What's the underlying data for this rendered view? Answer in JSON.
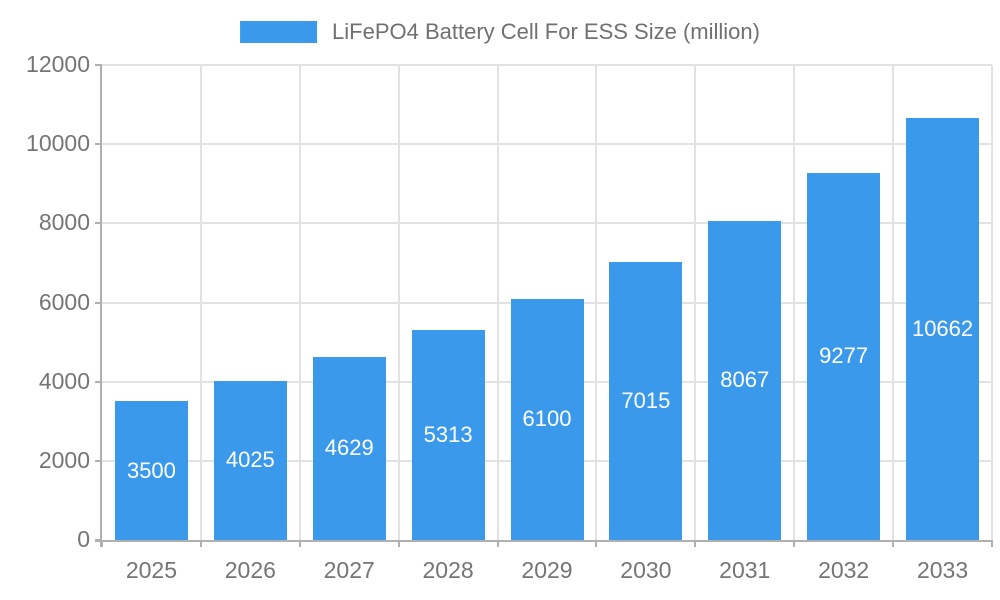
{
  "legend": {
    "label": "LiFePO4 Battery Cell For ESS Size (million)"
  },
  "chart_data": {
    "type": "bar",
    "categories": [
      "2025",
      "2026",
      "2027",
      "2028",
      "2029",
      "2030",
      "2031",
      "2032",
      "2033"
    ],
    "series": [
      {
        "name": "LiFePO4 Battery Cell For ESS Size (million)",
        "values": [
          3500,
          4025,
          4629,
          5313,
          6100,
          7015,
          8067,
          9277,
          10662
        ]
      }
    ],
    "title": "",
    "xlabel": "",
    "ylabel": "",
    "ylim": [
      0,
      12000
    ],
    "yticks": [
      0,
      2000,
      4000,
      6000,
      8000,
      10000,
      12000
    ],
    "grid": true,
    "legend_position": "top-center",
    "value_label_position": "inside-center"
  },
  "colors": {
    "bar": "#3b99ec",
    "grid": "#e2e2e2",
    "axis": "#b0b0b0",
    "tick_text": "#757575",
    "legend_text": "#707070",
    "value_text": "#ffffff",
    "background": "#ffffff"
  }
}
